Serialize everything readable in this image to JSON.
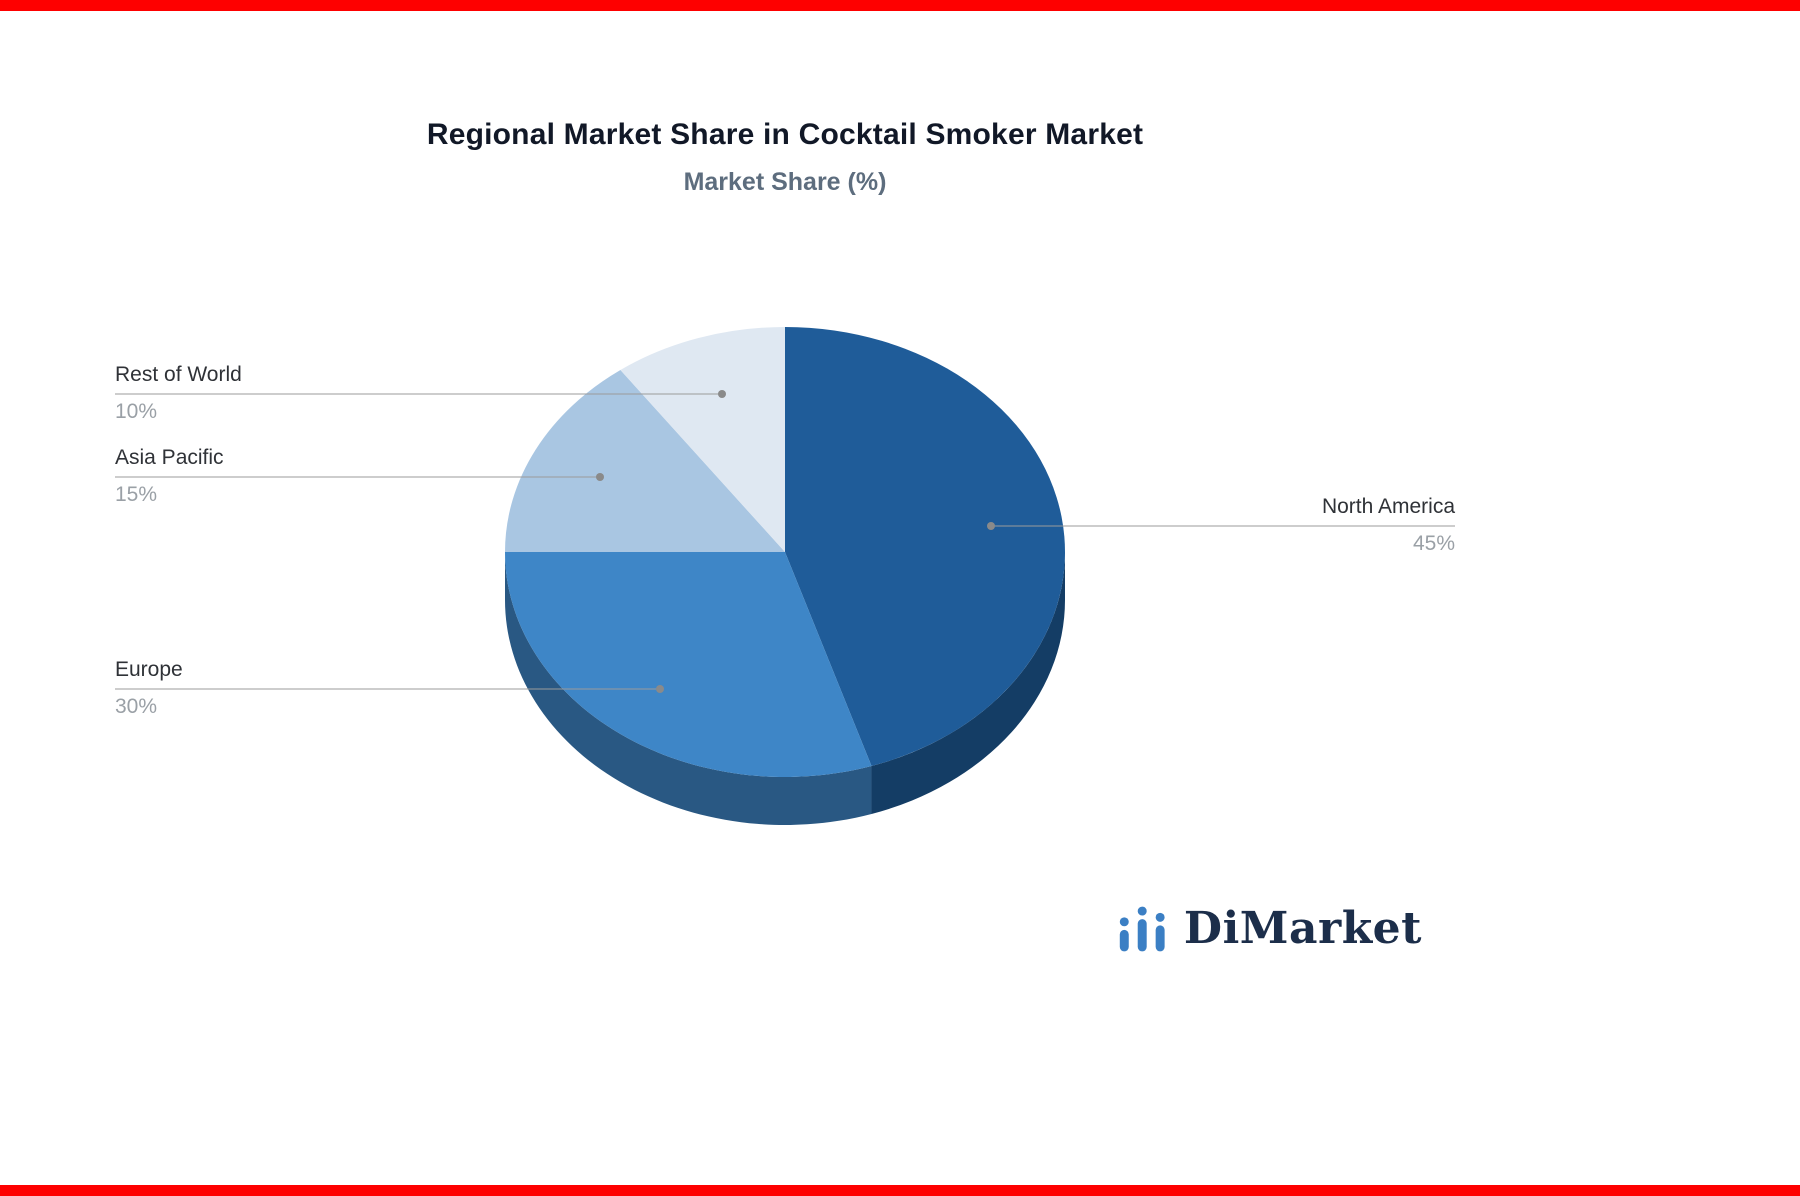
{
  "page": {
    "frame_color": "#fe0000",
    "background": "#ffffff",
    "brand": {
      "name": "DiMarket",
      "blue": "#3b7fc4",
      "navy": "#1c2e4a"
    }
  },
  "chart_data": {
    "type": "pie",
    "title": "Regional Market Share in Cocktail Smoker Market",
    "subtitle": "Market Share (%)",
    "unit": "%",
    "direction": "clockwise",
    "start_angle_deg": 0,
    "effect": "3d",
    "legend": "none",
    "slices": [
      {
        "label": "North America",
        "value": 45,
        "display": "45%",
        "color": "#1f5c99"
      },
      {
        "label": "Europe",
        "value": 30,
        "display": "30%",
        "color": "#3e86c7"
      },
      {
        "label": "Asia Pacific",
        "value": 15,
        "display": "15%",
        "color": "#a9c6e2"
      },
      {
        "label": "Rest of World",
        "value": 10,
        "display": "10%",
        "color": "#dfe8f2"
      }
    ]
  }
}
